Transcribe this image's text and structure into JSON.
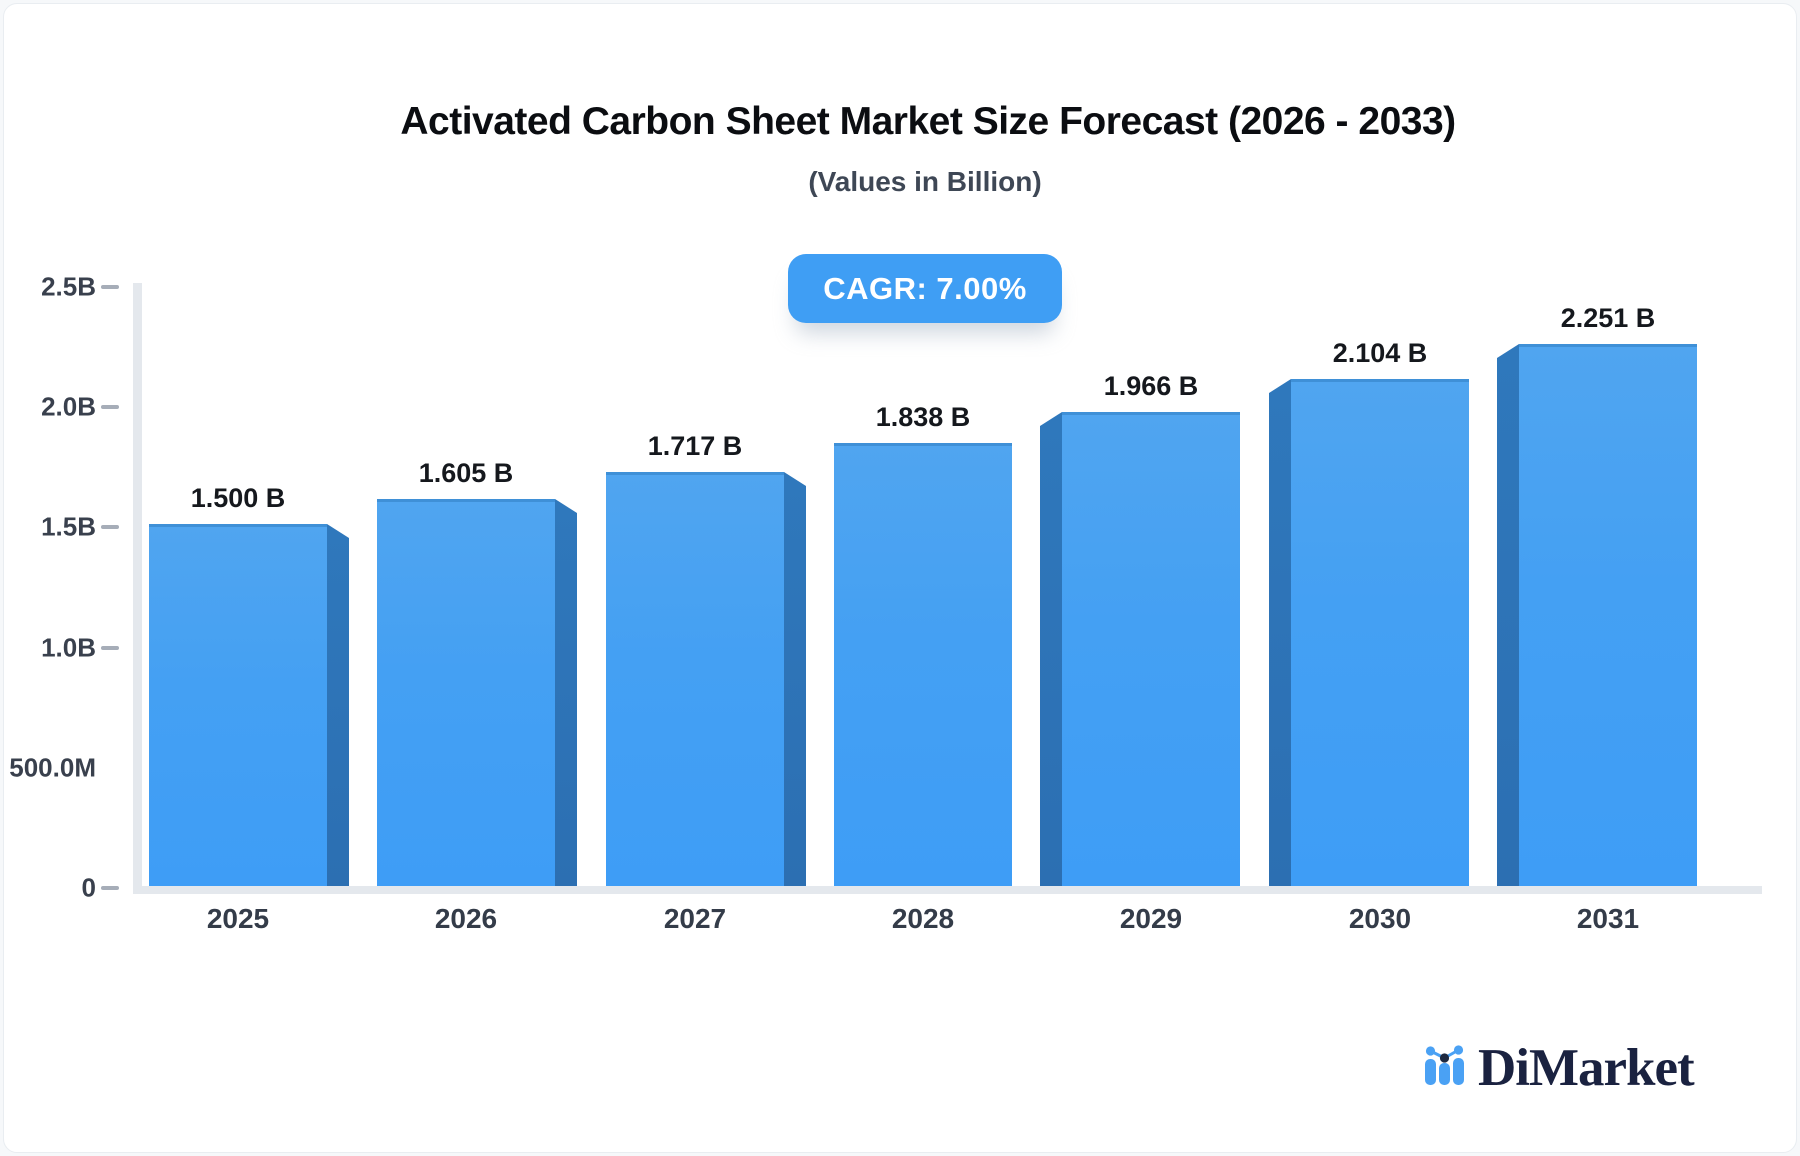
{
  "title": "Activated Carbon Sheet Market Size Forecast (2026 - 2033)",
  "subtitle": "(Values in Billion)",
  "cagr_badge": "CAGR: 7.00%",
  "brand": {
    "name": "DiMarket",
    "icon": "bar-chart-logo-icon"
  },
  "colors": {
    "bar_face": "#419ef5",
    "bar_side": "#2d72b7",
    "badge_bg": "#3f9ef4",
    "axis_line": "#e4e8ed",
    "tick": "#a6adb8",
    "brand_navy": "#1a2240",
    "brand_blue": "#4aa1f4"
  },
  "chart_data": {
    "type": "bar",
    "title": "Activated Carbon Sheet Market Size Forecast (2026 - 2033)",
    "subtitle": "(Values in Billion)",
    "categories": [
      "2025",
      "2026",
      "2027",
      "2028",
      "2029",
      "2030",
      "2031"
    ],
    "values": [
      1.5,
      1.605,
      1.717,
      1.838,
      1.966,
      2.104,
      2.251
    ],
    "bar_labels": [
      "1.500 B",
      "1.605 B",
      "1.717 B",
      "1.838 B",
      "1.966 B",
      "2.104 B",
      "2.251 B"
    ],
    "unit": "Billion",
    "xlabel": "",
    "ylabel": "",
    "ylim": [
      0,
      2.5
    ],
    "y_axis": {
      "tick_labels": [
        "2.5B",
        "2.0B",
        "1.5B",
        "1.0B",
        "500.0M",
        "0"
      ],
      "tick_values": [
        2.5,
        2.0,
        1.5,
        1.0,
        0.5,
        0
      ],
      "tick_dashes": [
        true,
        true,
        true,
        true,
        false,
        true
      ]
    },
    "grid": false,
    "legend": false,
    "annotation": "CAGR: 7.00%",
    "style": "3d-bars, perspective toward center"
  }
}
